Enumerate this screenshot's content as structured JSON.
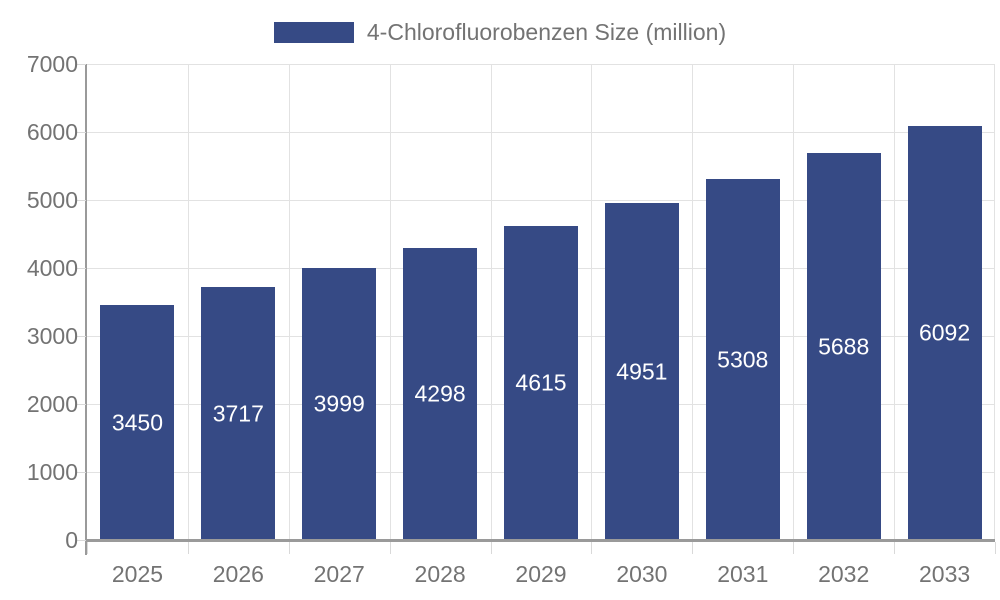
{
  "legend": {
    "label": "4-Chlorofluorobenzen Size (million)",
    "swatch_color": "#364a85"
  },
  "chart_data": {
    "type": "bar",
    "title": "",
    "categories": [
      "2025",
      "2026",
      "2027",
      "2028",
      "2029",
      "2030",
      "2031",
      "2032",
      "2033"
    ],
    "series": [
      {
        "name": "4-Chlorofluorobenzen Size (million)",
        "values": [
          3450,
          3717,
          3999,
          4298,
          4615,
          4951,
          5308,
          5688,
          6092
        ],
        "color": "#364a85"
      }
    ],
    "xlabel": "",
    "ylabel": "",
    "ylim": [
      0,
      7000
    ],
    "yticks": [
      0,
      1000,
      2000,
      3000,
      4000,
      5000,
      6000,
      7000
    ],
    "grid": true,
    "legend_position": "top",
    "value_labels_shown": true,
    "colors": {
      "bar": "#364a85",
      "value_label": "#ffffff",
      "axis_text": "#737373",
      "grid_line": "#e2e2e2",
      "tick_line": "#d9d9d9",
      "axis_line": "#9a9a9a"
    }
  }
}
